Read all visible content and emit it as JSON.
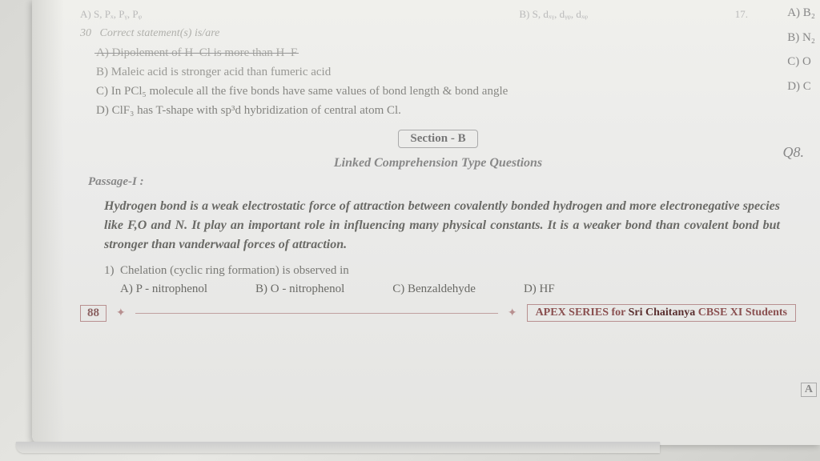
{
  "top": {
    "left": "A) S, Pₓ, Pᵧ, Pᵩ",
    "right": "B) S, dₓᵧ, dᵧᵩ, dₓᵩ",
    "q_num": "17."
  },
  "header": {
    "num": "30",
    "text": "Correct statement(s) is/are"
  },
  "options": {
    "a": "A) Dipolement of H–Cl is more than H–F",
    "b": "B) Maleic acid is stronger acid than fumeric acid",
    "c": "C) In PCl₅ molecule all the five bonds have same values of bond length & bond angle",
    "d": "D) ClF₃ has T-shape with sp³d hybridization of central atom Cl."
  },
  "right_col": {
    "a": "A) B₂",
    "b": "B) N₂",
    "c": "C) O",
    "d": "D) C"
  },
  "section": {
    "label": "Section - B",
    "subtitle": "Linked Comprehension Type Questions",
    "qmark": "Q8."
  },
  "passage": {
    "label": "Passage-I :",
    "body": "Hydrogen bond is a weak electrostatic force of attraction between covalently bonded hydrogen and more electronegative species like F,O and N. It play an important role in influencing many physical constants. It is a weaker bond than covalent bond but stronger than vanderwaal forces of attraction."
  },
  "question": {
    "num": "1)",
    "text": "Chelation (cyclic ring formation) is observed in",
    "a": "A) P - nitrophenol",
    "b": "B) O - nitrophenol",
    "c": "C) Benzaldehyde",
    "d": "D) HF"
  },
  "footer": {
    "page": "88",
    "apex_prefix": "APEX SERIES for ",
    "apex_mid": "Sri Chaitanya",
    "apex_suffix": " CBSE XI Students"
  },
  "side": {
    "a": "A"
  }
}
